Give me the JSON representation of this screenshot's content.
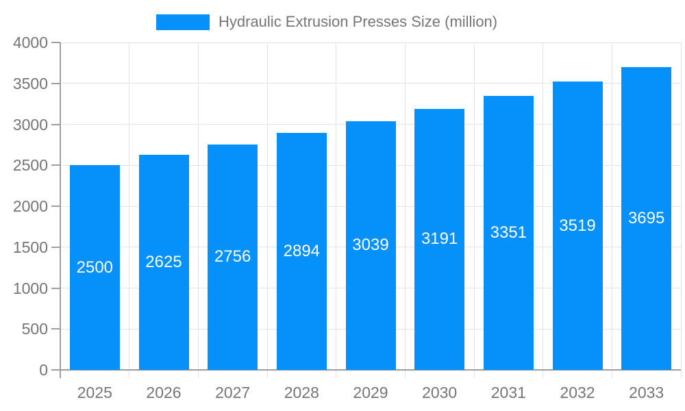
{
  "legend": {
    "label": "Hydraulic Extrusion Presses Size (million)"
  },
  "colors": {
    "bar": "#0590FA",
    "axis": "#9E9E9E",
    "grid": "#E3E3E3",
    "text": "#757575",
    "bar_label": "#FFFFFF",
    "background": "#FFFFFF"
  },
  "chart_data": {
    "type": "bar",
    "title": "Hydraulic Extrusion Presses Size (million)",
    "categories": [
      "2025",
      "2026",
      "2027",
      "2028",
      "2029",
      "2030",
      "2031",
      "2032",
      "2033"
    ],
    "values": [
      2500,
      2625,
      2756,
      2894,
      3039,
      3191,
      3351,
      3519,
      3695
    ],
    "y_ticks": [
      "0",
      "500",
      "1000",
      "1500",
      "2000",
      "2500",
      "3000",
      "3500",
      "4000"
    ],
    "ylim": [
      0,
      4000
    ],
    "xlabel": "",
    "ylabel": "",
    "grid": true,
    "legend_position": "top-center",
    "bar_value_labels": "inside-center"
  }
}
